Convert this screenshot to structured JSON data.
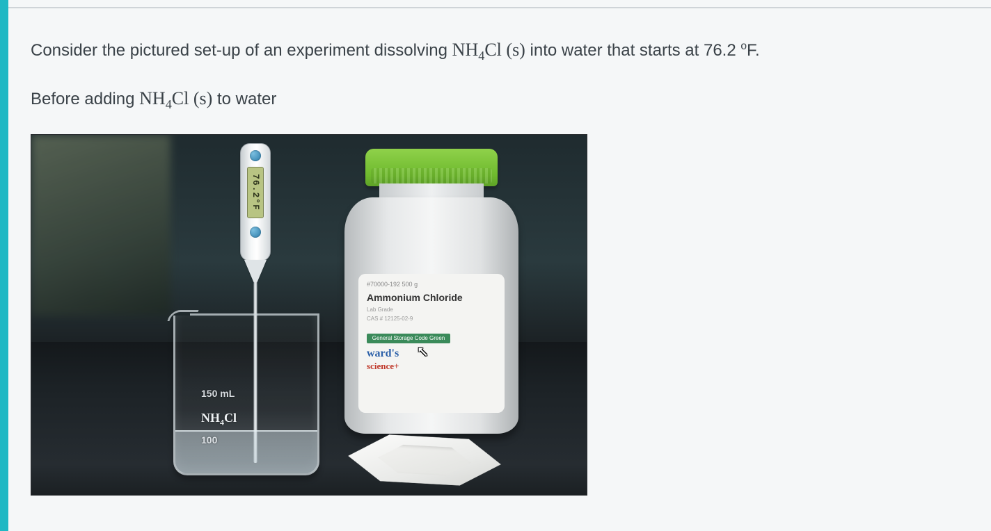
{
  "colors": {
    "accent": "#1fb8c4",
    "page_bg": "#f5f7f8",
    "text": "#3a4248",
    "cap_green": "#6fba2e",
    "brand_blue": "#2a5fa8",
    "brand_red": "#c0392b",
    "storage_bar": "#3a8a5a"
  },
  "question": {
    "line1_pre": "Consider the pictured set-up of an experiment dissolving ",
    "formula_nh4cl": "NH4Cl (s)",
    "line1_post_pre_temp": " into water that starts at ",
    "temperature_value": "76.2",
    "temperature_unit": "°F",
    "line1_post": ".",
    "line2_pre": "Before adding ",
    "line2_post": " to water"
  },
  "figure": {
    "thermometer": {
      "reading": "76.2°F"
    },
    "bottle": {
      "product_code": "#70000-192   500 g",
      "chemical_name": "Ammonium Chloride",
      "specs_line1": "Lab Grade",
      "specs_line2": "CAS # 12125-02-9",
      "storage_bar_text": "General Storage Code Green",
      "brand_wards": "ward's",
      "brand_science": "science+"
    },
    "beaker": {
      "mark_top": "150 mL",
      "handwritten": "NH4Cl",
      "mark_bottom": "100"
    }
  }
}
